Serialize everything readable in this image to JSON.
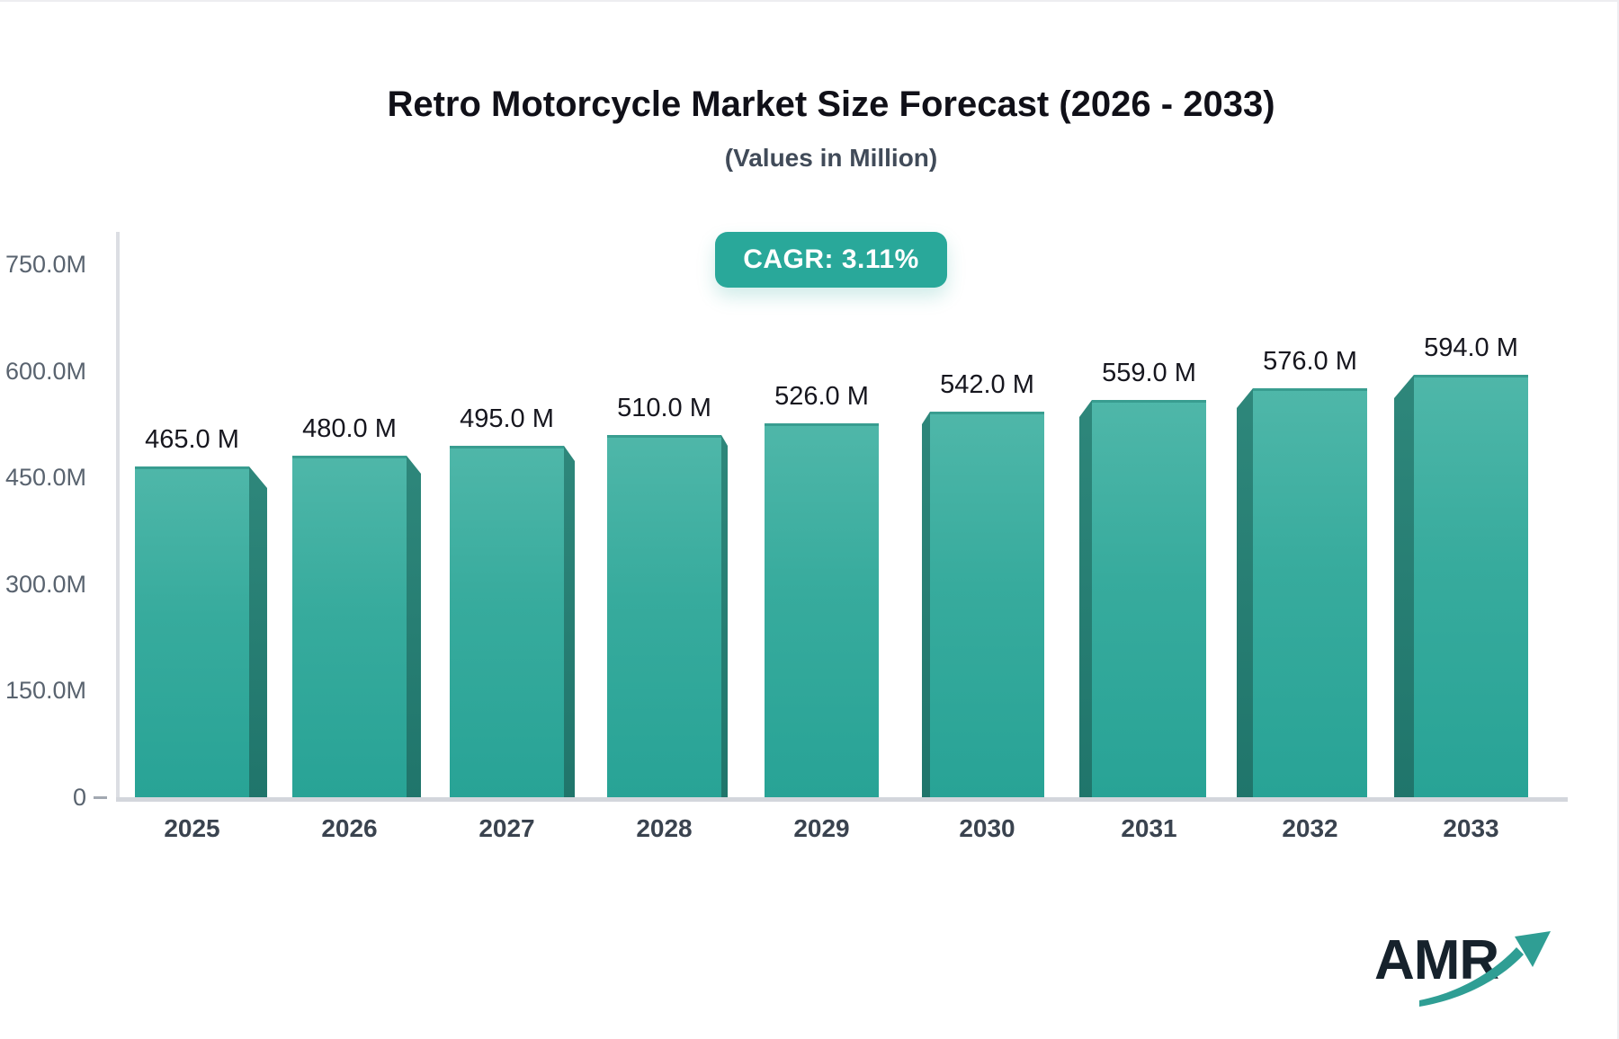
{
  "header": {
    "title": "Retro Motorcycle Market Size Forecast (2026 - 2033)",
    "subtitle": "(Values in Million)",
    "cagr_badge": "CAGR: 3.11%"
  },
  "footer": {
    "logo_text": "AMR",
    "logo_arrow_icon": "trend-up-arrow-icon"
  },
  "colors": {
    "accent_teal": "#29a89a",
    "bar_face_top": "#4fb7a9",
    "bar_face_bottom": "#28a396",
    "bar_side_top": "#2e877b",
    "bar_side_bottom": "#20756b",
    "axis_gray": "#d3d6dc",
    "y_label_gray": "#59636f",
    "x_label_dark": "#3a434f",
    "title_dark": "#101018",
    "logo_dark": "#16222c"
  },
  "chart_data": {
    "type": "bar",
    "title": "Retro Motorcycle Market Size Forecast (2026 - 2033)",
    "subtitle": "(Values in Million)",
    "cagr": "3.11%",
    "unit": "Million",
    "categories": [
      "2025",
      "2026",
      "2027",
      "2028",
      "2029",
      "2030",
      "2031",
      "2032",
      "2033"
    ],
    "values": [
      465,
      480,
      495,
      510,
      526,
      542,
      559,
      576,
      594
    ],
    "value_labels": [
      "465.0 M",
      "480.0 M",
      "495.0 M",
      "510.0 M",
      "526.0 M",
      "542.0 M",
      "559.0 M",
      "576.0 M",
      "594.0 M"
    ],
    "xlabel": "",
    "ylabel": "",
    "ylim": [
      0,
      750
    ],
    "yticks": [
      {
        "value": 0,
        "label": "0"
      },
      {
        "value": 150,
        "label": "150.0M"
      },
      {
        "value": 300,
        "label": "300.0M"
      },
      {
        "value": 450,
        "label": "450.0M"
      },
      {
        "value": 600,
        "label": "600.0M"
      },
      {
        "value": 750,
        "label": "750.0M"
      }
    ],
    "grid": false,
    "legend": false,
    "bar_style": "3d-perspective"
  }
}
